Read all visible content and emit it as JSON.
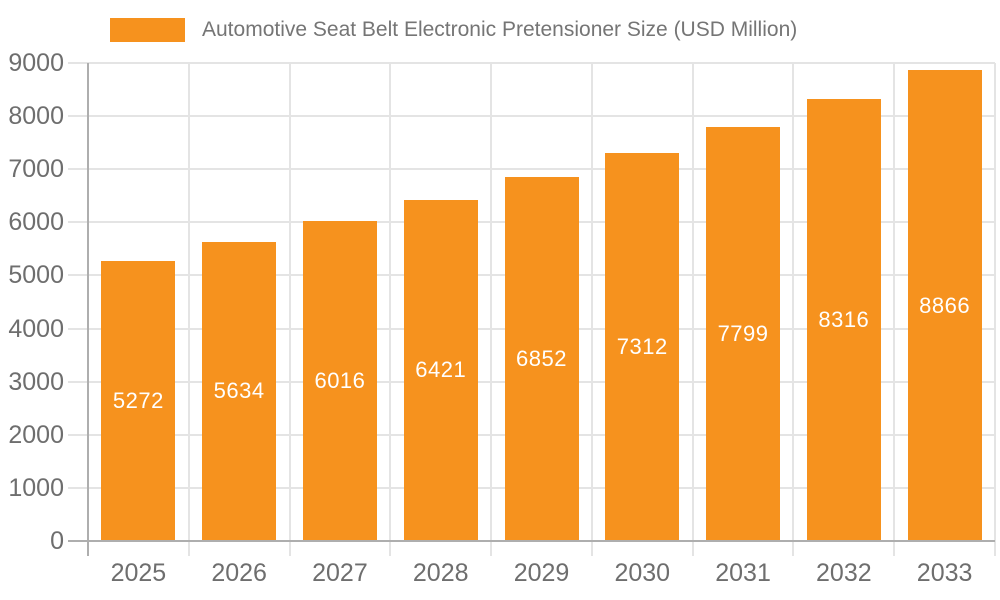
{
  "colors": {
    "bar": "#F6921E",
    "grid": "#E4E4E4",
    "axis_line": "#AEAEAE",
    "axis_text": "#6E6E6E",
    "title_text": "#757575",
    "bar_label_text": "#FFFFFF",
    "background": "#FFFFFF"
  },
  "chart_data": {
    "type": "bar",
    "title": "Automotive Seat Belt Electronic Pretensioner Size (USD Million)",
    "legend": [
      {
        "label": "Automotive Seat Belt Electronic Pretensioner Size (USD Million)",
        "color": "#F6921E"
      }
    ],
    "legend_position": "top-left",
    "categories": [
      "2025",
      "2026",
      "2027",
      "2028",
      "2029",
      "2030",
      "2031",
      "2032",
      "2033"
    ],
    "values": [
      5272,
      5634,
      6016,
      6421,
      6852,
      7312,
      7799,
      8316,
      8866
    ],
    "xlabel": "",
    "ylabel": "",
    "ylim": [
      0,
      9000
    ],
    "yticks": [
      0,
      1000,
      2000,
      3000,
      4000,
      5000,
      6000,
      7000,
      8000,
      9000
    ],
    "grid": "horizontal-and-vertical",
    "value_label_position": "inside-center"
  }
}
